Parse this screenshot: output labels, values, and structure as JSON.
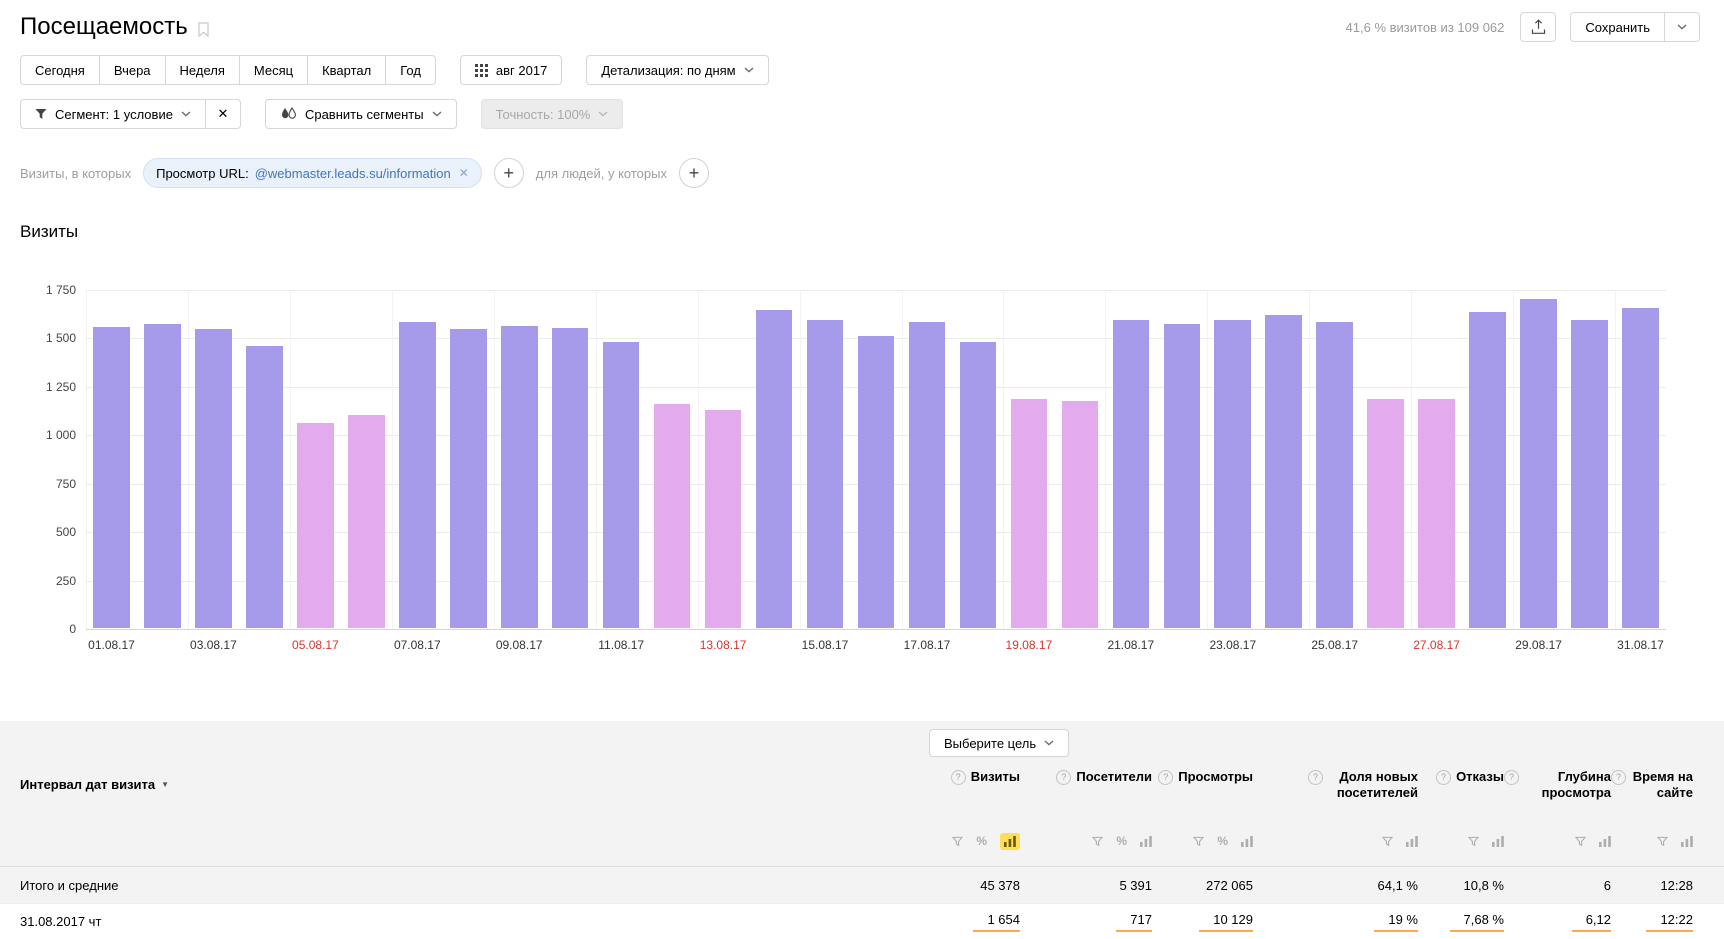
{
  "header": {
    "title": "Посещаемость",
    "stats": "41,6 % визитов из 109 062",
    "save_label": "Сохранить"
  },
  "toolbar": {
    "periods": [
      "Сегодня",
      "Вчера",
      "Неделя",
      "Месяц",
      "Квартал",
      "Год"
    ],
    "calendar_label": "авг 2017",
    "detail_label": "Детализация: по дням",
    "segment_label": "Сегмент: 1 условие",
    "segment_close": "✕",
    "compare_label": "Сравнить сегменты",
    "accuracy_label": "Точность: 100%"
  },
  "filters": {
    "visits_prefix": "Визиты, в которых",
    "chip_label": "Просмотр URL:",
    "chip_value": "@webmaster.leads.su/information",
    "people_prefix": "для людей, у которых"
  },
  "chart_data": {
    "type": "bar",
    "title": "Визиты",
    "ylim": [
      0,
      1750
    ],
    "grid": true,
    "yticks": [
      {
        "value": 0,
        "label": "0"
      },
      {
        "value": 250,
        "label": "250"
      },
      {
        "value": 500,
        "label": "500"
      },
      {
        "value": 750,
        "label": "750"
      },
      {
        "value": 1000,
        "label": "1 000"
      },
      {
        "value": 1250,
        "label": "1 250"
      },
      {
        "value": 1500,
        "label": "1 500"
      },
      {
        "value": 1750,
        "label": "1 750"
      }
    ],
    "x_labels": [
      "01.08.17",
      "03.08.17",
      "05.08.17",
      "07.08.17",
      "09.08.17",
      "11.08.17",
      "13.08.17",
      "15.08.17",
      "17.08.17",
      "19.08.17",
      "21.08.17",
      "23.08.17",
      "25.08.17",
      "27.08.17",
      "29.08.17",
      "31.08.17"
    ],
    "values": [
      1555,
      1570,
      1545,
      1455,
      1060,
      1100,
      1580,
      1545,
      1560,
      1550,
      1475,
      1155,
      1125,
      1640,
      1590,
      1510,
      1580,
      1475,
      1180,
      1170,
      1590,
      1570,
      1590,
      1615,
      1580,
      1180,
      1180,
      1630,
      1700,
      1590,
      1654
    ],
    "weekend_indices": [
      4,
      5,
      11,
      12,
      18,
      19,
      25,
      26
    ],
    "colors": {
      "weekday": "#a69aeb",
      "weekend": "#e3abee",
      "weekend_label": "#d9352b"
    }
  },
  "table": {
    "goal_button": "Выберите цель",
    "row_header": "Интервал дат визита",
    "columns": [
      {
        "label": "Визиты",
        "icons": [
          "filter",
          "percent",
          "chart"
        ],
        "selected": "chart"
      },
      {
        "label": "Посетители",
        "icons": [
          "filter",
          "percent",
          "chart"
        ]
      },
      {
        "label": "Просмотры",
        "icons": [
          "filter",
          "percent",
          "chart"
        ]
      },
      {
        "label": "Доля новых посетителей",
        "icons": [
          "filter",
          "chart"
        ],
        "wrap": "wrap"
      },
      {
        "label": "Отказы",
        "icons": [
          "filter",
          "chart"
        ]
      },
      {
        "label": "Глубина просмотра",
        "icons": [
          "filter",
          "chart"
        ],
        "wrap": "wrap"
      },
      {
        "label": "Время на сайте",
        "icons": [
          "filter",
          "chart"
        ],
        "wrap": "wrap-narrow"
      }
    ],
    "totals": {
      "label": "Итого и средние",
      "values": [
        "45 378",
        "5 391",
        "272 065",
        "64,1 %",
        "10,8 %",
        "6",
        "12:28"
      ]
    },
    "rows": [
      {
        "label": "31.08.2017 чт",
        "values": [
          "1 654",
          "717",
          "10 129",
          "19 %",
          "7,68 %",
          "6,12",
          "12:22"
        ]
      }
    ],
    "colors": {
      "selected_icon_bg": "#ffdd57",
      "underline": "#ffa94d"
    }
  }
}
